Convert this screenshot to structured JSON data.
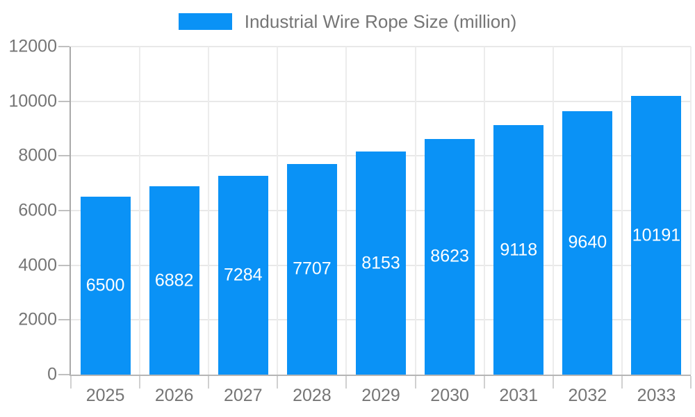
{
  "chart_data": {
    "type": "bar",
    "title": "Industrial Wire Rope Size (million)",
    "legend": {
      "label": "Industrial Wire Rope Size (million)",
      "position": "top"
    },
    "categories": [
      "2025",
      "2026",
      "2027",
      "2028",
      "2029",
      "2030",
      "2031",
      "2032",
      "2033"
    ],
    "values": [
      6500,
      6882,
      7284,
      7707,
      8153,
      8623,
      9118,
      9640,
      10191
    ],
    "xlabel": "",
    "ylabel": "",
    "ylim": [
      0,
      12000
    ],
    "yticks": [
      0,
      2000,
      4000,
      6000,
      8000,
      10000,
      12000
    ],
    "grid": true,
    "bar_labels_visible": true,
    "colors": {
      "bar": "#0A92F6",
      "bar_label_text": "#ffffff",
      "axis_text": "#757575",
      "grid_line": "#e8e8e8",
      "axis_line": "#b0b0b0"
    }
  }
}
